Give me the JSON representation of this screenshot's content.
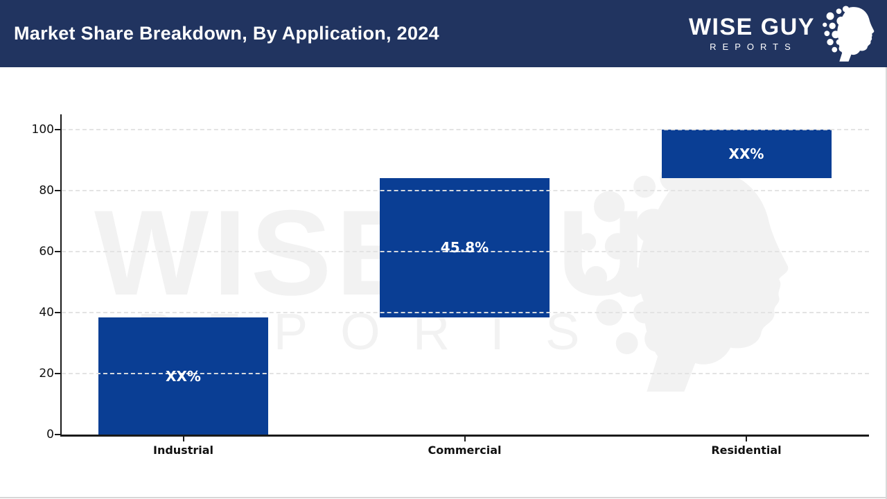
{
  "header": {
    "title": "Market Share Breakdown, By Application, 2024",
    "bg_color": "#213460",
    "logo": {
      "line1": "WISE GUY",
      "line2": "REPORTS"
    }
  },
  "watermark": {
    "line1": "WISE GUY",
    "line2": "REPORTS"
  },
  "chart_data": {
    "type": "bar",
    "subtype": "floating-waterfall",
    "title": "Market Share Breakdown, By Application, 2024",
    "categories": [
      "Industrial",
      "Commercial",
      "Residential"
    ],
    "segments": [
      [
        0,
        38.4
      ],
      [
        38.4,
        84.2
      ],
      [
        84.2,
        100
      ]
    ],
    "values": [
      38.4,
      45.8,
      15.8
    ],
    "bar_labels": [
      "XX%",
      "45.8%",
      "XX%"
    ],
    "bar_color": "#0a3e94",
    "label_color": "#ffffff",
    "xlabel": "",
    "ylabel": "",
    "ylim": [
      0,
      100
    ],
    "yticks": [
      0,
      20,
      40,
      60,
      80,
      100
    ],
    "grid": "horizontal-dashed",
    "gridline_color": "#e2e2e2",
    "legend": "none"
  }
}
